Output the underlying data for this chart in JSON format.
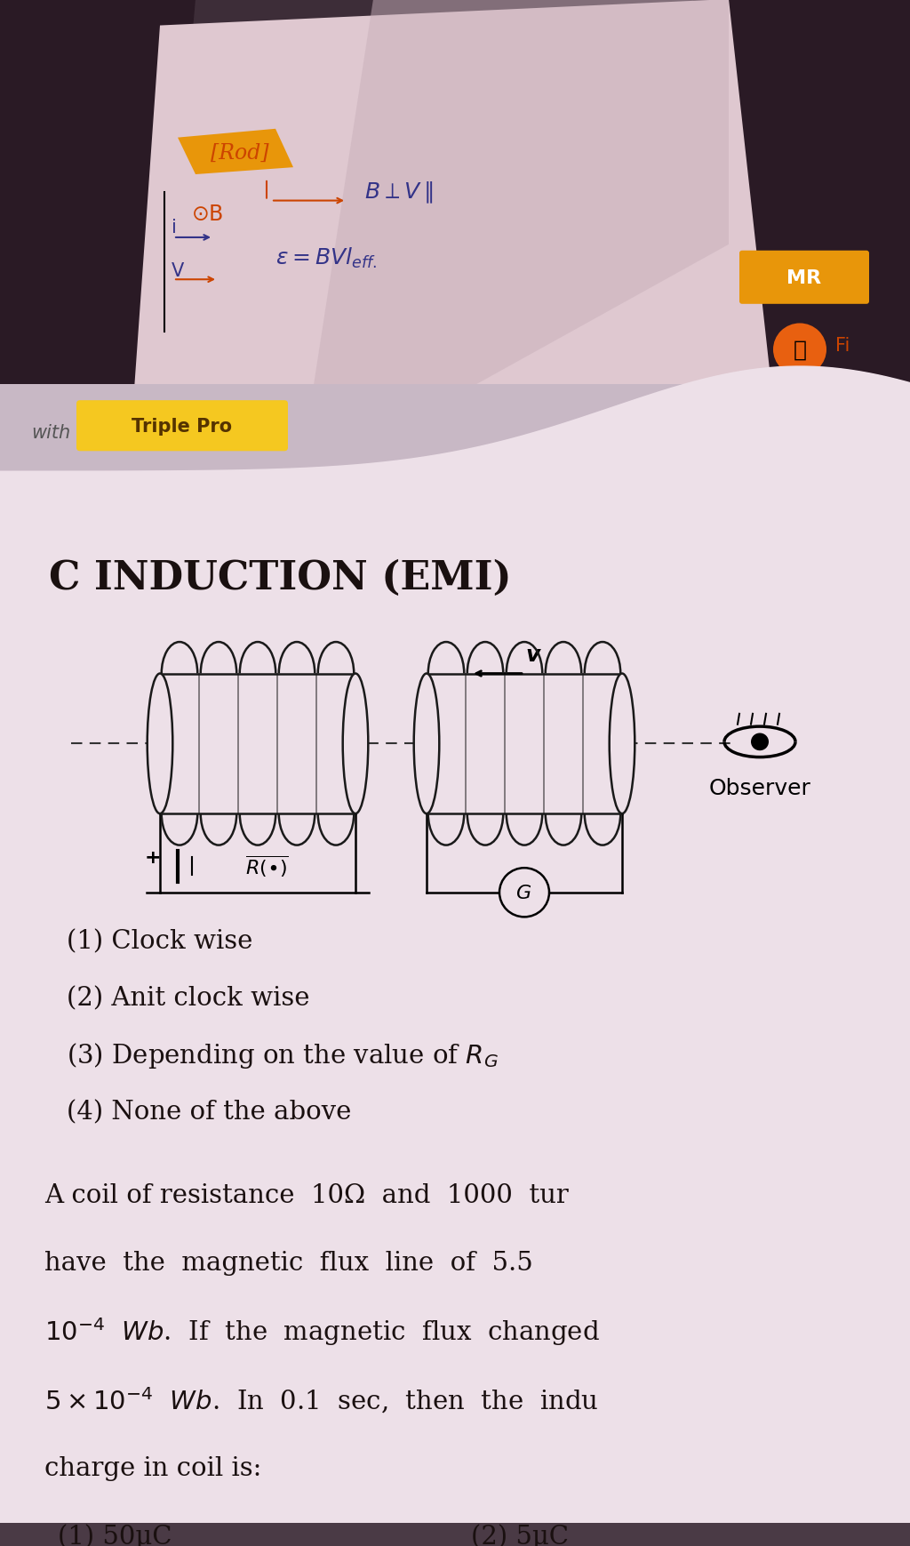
{
  "bg_top_color": "#7a6070",
  "bg_dark_color": "#4a3a45",
  "page_color": "#ede0e8",
  "page_color2": "#e8dce5",
  "title": "C INDUCTION (EMI)",
  "title_fontsize": 32,
  "options": [
    "(1) Clock wise",
    "(2) Anit clock wise",
    "(3) Depending on the value of $R_G$",
    "(4) None of the above"
  ],
  "paragraph_line1": "A coil of resistance  10Ω  and  1000  tur",
  "paragraph_line2": "have  the  magnetic  flux  line  of  5.5",
  "paragraph_line3": "$10^{-4}$  $Wb$.  If  the  magnetic  flux  changed",
  "paragraph_line4": "$5 \\times 10^{-4}$  $Wb$.  In  0.1  sec,  then  the  indu",
  "paragraph_line5": "charge in coil is:",
  "observer_label": "Observer",
  "v_label": "v",
  "text_color": "#1a1010",
  "option_fontsize": 21,
  "para_fontsize": 21,
  "rod_text": "[Rod]",
  "top_orange_color": "#e8960a",
  "top_mr_color": "#e8960a",
  "top_fire_color": "#e86010"
}
